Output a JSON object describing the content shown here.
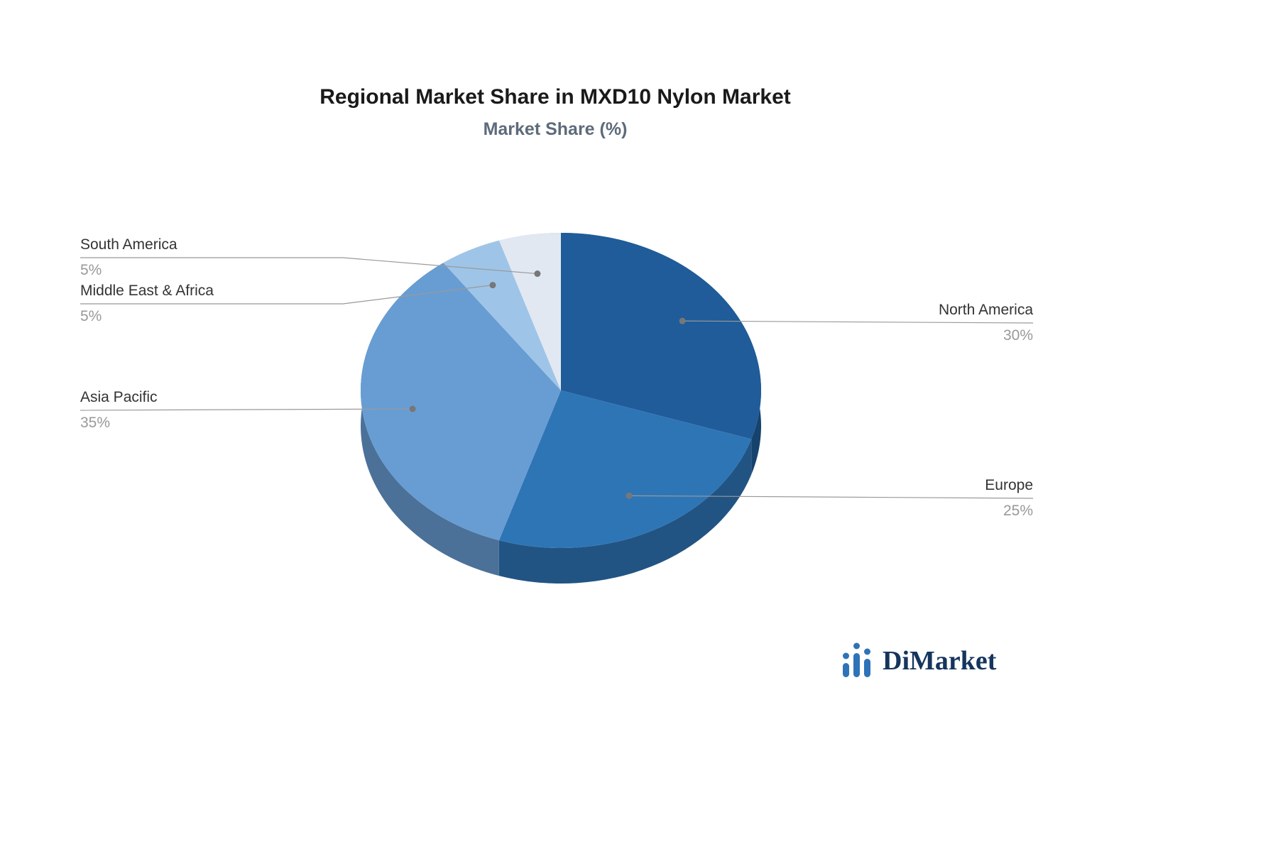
{
  "page": {
    "background": "#ffffff"
  },
  "chart_data": {
    "type": "pie",
    "style": "pie-3d",
    "title": "Regional Market Share in MXD10 Nylon Market",
    "subtitle": "Market Share (%)",
    "unit": "%",
    "legend": "none",
    "start_angle_deg": 0,
    "direction": "clockwise",
    "points": [
      {
        "name": "North America",
        "value": 30,
        "pct_label": "30%",
        "color": "#1f5c99"
      },
      {
        "name": "Europe",
        "value": 25,
        "pct_label": "25%",
        "color": "#2e75b6"
      },
      {
        "name": "Asia Pacific",
        "value": 35,
        "pct_label": "35%",
        "color": "#689dd3"
      },
      {
        "name": "Middle East & Africa",
        "value": 5,
        "pct_label": "5%",
        "color": "#9ec5e8"
      },
      {
        "name": "South America",
        "value": 5,
        "pct_label": "5%",
        "color": "#e1e8f2"
      }
    ],
    "label_text_color": "#333333",
    "value_text_color": "#999999",
    "leader_line_color": "#999999",
    "leader_dot_color": "#777777"
  },
  "brand": {
    "name": "DiMarket",
    "icon": "bar-chart-logo-icon",
    "icon_color": "#2e73b8",
    "text_color": "#16355d"
  }
}
